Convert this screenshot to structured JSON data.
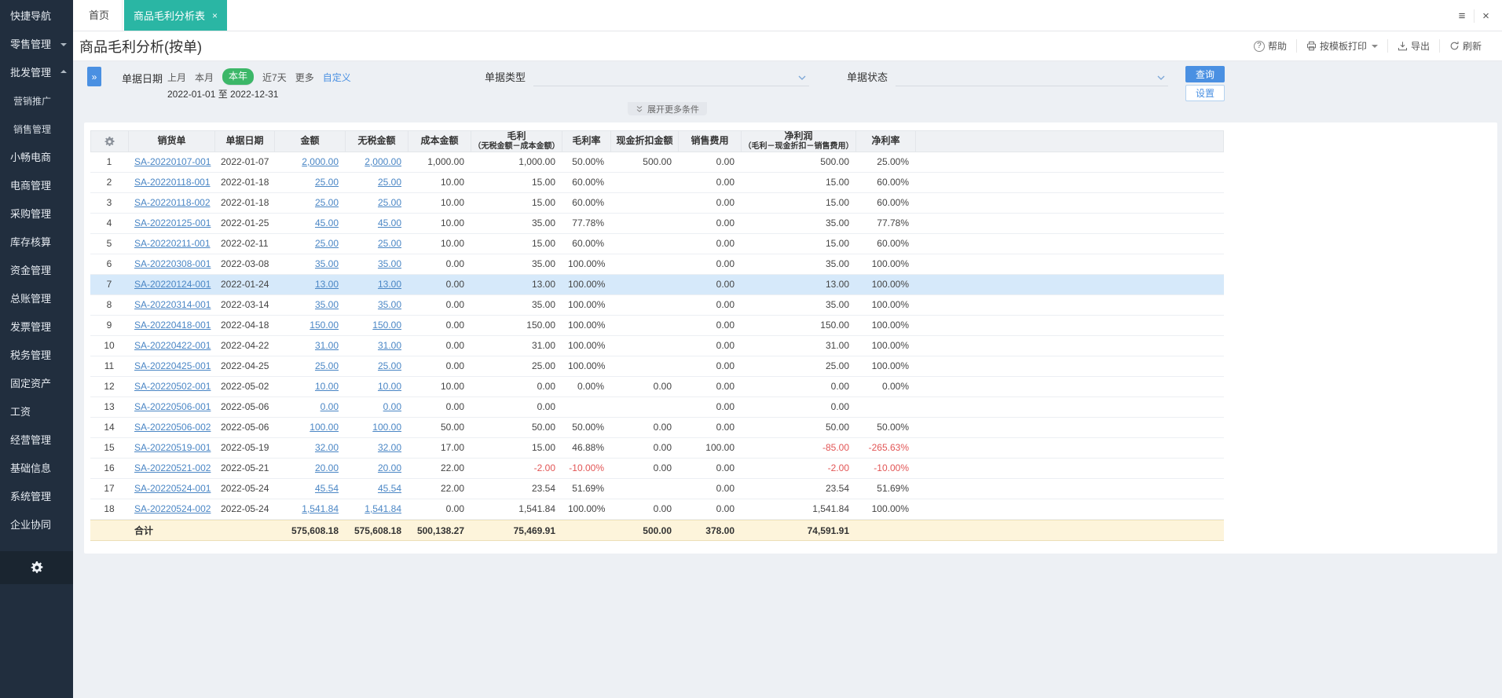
{
  "icons": {
    "close_tab": "×",
    "tab_menu": "≡",
    "window_close": "×",
    "collapse_filter": "»",
    "help": "?"
  },
  "sidebar": {
    "items": [
      {
        "label": "快捷导航"
      },
      {
        "label": "零售管理",
        "arrow": "down"
      },
      {
        "label": "批发管理",
        "arrow": "up"
      },
      {
        "label": "营销推广",
        "sub": true
      },
      {
        "label": "销售管理",
        "sub": true
      },
      {
        "label": "小畅电商"
      },
      {
        "label": "电商管理"
      },
      {
        "label": "采购管理"
      },
      {
        "label": "库存核算"
      },
      {
        "label": "资金管理"
      },
      {
        "label": "总账管理"
      },
      {
        "label": "发票管理"
      },
      {
        "label": "税务管理"
      },
      {
        "label": "固定资产"
      },
      {
        "label": "工资"
      },
      {
        "label": "经营管理"
      },
      {
        "label": "基础信息"
      },
      {
        "label": "系统管理"
      },
      {
        "label": "企业协同"
      }
    ]
  },
  "tabbar": {
    "home_tab": "首页",
    "active_tab": "商品毛利分析表"
  },
  "page": {
    "title": "商品毛利分析(按单)",
    "actions": {
      "help": "帮助",
      "print": "按模板打印",
      "export": "导出",
      "refresh": "刷新"
    }
  },
  "filters": {
    "date_label": "单据日期",
    "quick_options": [
      {
        "label": "上月"
      },
      {
        "label": "本月"
      },
      {
        "label": "本年",
        "selected": true
      },
      {
        "label": "近7天"
      },
      {
        "label": "更多"
      },
      {
        "label": "自定义",
        "accent": true
      }
    ],
    "date_range": "2022-01-01 至 2022-12-31",
    "type_label": "单据类型",
    "status_label": "单据状态",
    "search_button": "查询",
    "settings_button": "设置",
    "expand_more": "展开更多条件"
  },
  "table": {
    "columns": [
      {
        "label": "销货单"
      },
      {
        "label": "单据日期"
      },
      {
        "label": "金额"
      },
      {
        "label": "无税金额"
      },
      {
        "label": "成本金额"
      },
      {
        "label": "毛利",
        "sub": "（无税金额－成本金额）"
      },
      {
        "label": "毛利率"
      },
      {
        "label": "现金折扣金额"
      },
      {
        "label": "销售费用"
      },
      {
        "label": "净利润",
        "sub": "（毛利－现金折扣－销售费用）"
      },
      {
        "label": "净利率"
      }
    ],
    "rows": [
      {
        "num": "1",
        "order": "SA-20220107-001",
        "date": "2022-01-07",
        "amount": "2,000.00",
        "tax_free": "2,000.00",
        "cost": "1,000.00",
        "profit": "1,000.00",
        "margin": "50.00%",
        "discount": "500.00",
        "expense": "0.00",
        "net": "500.00",
        "net_margin": "25.00%"
      },
      {
        "num": "2",
        "order": "SA-20220118-001",
        "date": "2022-01-18",
        "amount": "25.00",
        "tax_free": "25.00",
        "cost": "10.00",
        "profit": "15.00",
        "margin": "60.00%",
        "discount": "",
        "expense": "0.00",
        "net": "15.00",
        "net_margin": "60.00%"
      },
      {
        "num": "3",
        "order": "SA-20220118-002",
        "date": "2022-01-18",
        "amount": "25.00",
        "tax_free": "25.00",
        "cost": "10.00",
        "profit": "15.00",
        "margin": "60.00%",
        "discount": "",
        "expense": "0.00",
        "net": "15.00",
        "net_margin": "60.00%"
      },
      {
        "num": "4",
        "order": "SA-20220125-001",
        "date": "2022-01-25",
        "amount": "45.00",
        "tax_free": "45.00",
        "cost": "10.00",
        "profit": "35.00",
        "margin": "77.78%",
        "discount": "",
        "expense": "0.00",
        "net": "35.00",
        "net_margin": "77.78%"
      },
      {
        "num": "5",
        "order": "SA-20220211-001",
        "date": "2022-02-11",
        "amount": "25.00",
        "tax_free": "25.00",
        "cost": "10.00",
        "profit": "15.00",
        "margin": "60.00%",
        "discount": "",
        "expense": "0.00",
        "net": "15.00",
        "net_margin": "60.00%"
      },
      {
        "num": "6",
        "order": "SA-20220308-001",
        "date": "2022-03-08",
        "amount": "35.00",
        "tax_free": "35.00",
        "cost": "0.00",
        "profit": "35.00",
        "margin": "100.00%",
        "discount": "",
        "expense": "0.00",
        "net": "35.00",
        "net_margin": "100.00%"
      },
      {
        "num": "7",
        "order": "SA-20220124-001",
        "date": "2022-01-24",
        "amount": "13.00",
        "tax_free": "13.00",
        "cost": "0.00",
        "profit": "13.00",
        "margin": "100.00%",
        "discount": "",
        "expense": "0.00",
        "net": "13.00",
        "net_margin": "100.00%",
        "highlighted": true
      },
      {
        "num": "8",
        "order": "SA-20220314-001",
        "date": "2022-03-14",
        "amount": "35.00",
        "tax_free": "35.00",
        "cost": "0.00",
        "profit": "35.00",
        "margin": "100.00%",
        "discount": "",
        "expense": "0.00",
        "net": "35.00",
        "net_margin": "100.00%"
      },
      {
        "num": "9",
        "order": "SA-20220418-001",
        "date": "2022-04-18",
        "amount": "150.00",
        "tax_free": "150.00",
        "cost": "0.00",
        "profit": "150.00",
        "margin": "100.00%",
        "discount": "",
        "expense": "0.00",
        "net": "150.00",
        "net_margin": "100.00%"
      },
      {
        "num": "10",
        "order": "SA-20220422-001",
        "date": "2022-04-22",
        "amount": "31.00",
        "tax_free": "31.00",
        "cost": "0.00",
        "profit": "31.00",
        "margin": "100.00%",
        "discount": "",
        "expense": "0.00",
        "net": "31.00",
        "net_margin": "100.00%"
      },
      {
        "num": "11",
        "order": "SA-20220425-001",
        "date": "2022-04-25",
        "amount": "25.00",
        "tax_free": "25.00",
        "cost": "0.00",
        "profit": "25.00",
        "margin": "100.00%",
        "discount": "",
        "expense": "0.00",
        "net": "25.00",
        "net_margin": "100.00%"
      },
      {
        "num": "12",
        "order": "SA-20220502-001",
        "date": "2022-05-02",
        "amount": "10.00",
        "tax_free": "10.00",
        "cost": "10.00",
        "profit": "0.00",
        "margin": "0.00%",
        "discount": "0.00",
        "expense": "0.00",
        "net": "0.00",
        "net_margin": "0.00%"
      },
      {
        "num": "13",
        "order": "SA-20220506-001",
        "date": "2022-05-06",
        "amount": "0.00",
        "tax_free": "0.00",
        "cost": "0.00",
        "profit": "0.00",
        "margin": "",
        "discount": "",
        "expense": "0.00",
        "net": "0.00",
        "net_margin": ""
      },
      {
        "num": "14",
        "order": "SA-20220506-002",
        "date": "2022-05-06",
        "amount": "100.00",
        "tax_free": "100.00",
        "cost": "50.00",
        "profit": "50.00",
        "margin": "50.00%",
        "discount": "0.00",
        "expense": "0.00",
        "net": "50.00",
        "net_margin": "50.00%"
      },
      {
        "num": "15",
        "order": "SA-20220519-001",
        "date": "2022-05-19",
        "amount": "32.00",
        "tax_free": "32.00",
        "cost": "17.00",
        "profit": "15.00",
        "margin": "46.88%",
        "discount": "0.00",
        "expense": "100.00",
        "net": "-85.00",
        "net_margin": "-265.63%"
      },
      {
        "num": "16",
        "order": "SA-20220521-002",
        "date": "2022-05-21",
        "amount": "20.00",
        "tax_free": "20.00",
        "cost": "22.00",
        "profit": "-2.00",
        "margin": "-10.00%",
        "discount": "0.00",
        "expense": "0.00",
        "net": "-2.00",
        "net_margin": "-10.00%"
      },
      {
        "num": "17",
        "order": "SA-20220524-001",
        "date": "2022-05-24",
        "amount": "45.54",
        "tax_free": "45.54",
        "cost": "22.00",
        "profit": "23.54",
        "margin": "51.69%",
        "discount": "",
        "expense": "0.00",
        "net": "23.54",
        "net_margin": "51.69%"
      },
      {
        "num": "18",
        "order": "SA-20220524-002",
        "date": "2022-05-24",
        "amount": "1,541.84",
        "tax_free": "1,541.84",
        "cost": "0.00",
        "profit": "1,541.84",
        "margin": "100.00%",
        "discount": "0.00",
        "expense": "0.00",
        "net": "1,541.84",
        "net_margin": "100.00%"
      }
    ],
    "total": {
      "label": "合计",
      "amount": "575,608.18",
      "tax_free": "575,608.18",
      "cost": "500,138.27",
      "profit": "75,469.91",
      "margin": "",
      "discount": "500.00",
      "expense": "378.00",
      "net": "74,591.91",
      "net_margin": ""
    }
  }
}
